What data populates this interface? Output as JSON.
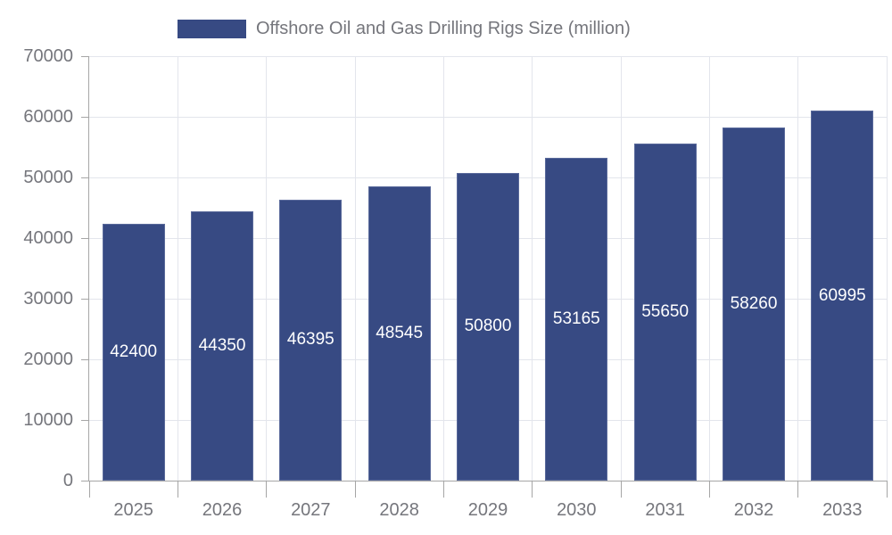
{
  "chart_data": {
    "type": "bar",
    "title": "",
    "legend_position": "top",
    "categories": [
      "2025",
      "2026",
      "2027",
      "2028",
      "2029",
      "2030",
      "2031",
      "2032",
      "2033"
    ],
    "series": [
      {
        "name": "Offshore Oil and Gas Drilling Rigs Size (million)",
        "values": [
          42400,
          44350,
          46395,
          48545,
          50800,
          53165,
          55650,
          58260,
          60995
        ]
      }
    ],
    "xlabel": "",
    "ylabel": "",
    "ylim": [
      0,
      70000
    ],
    "yticks": [
      0,
      10000,
      20000,
      30000,
      40000,
      50000,
      60000,
      70000
    ],
    "grid": true,
    "bar_labels_inside": true,
    "colors": {
      "bar_fill": "#374A83",
      "bar_edge": "#A3ABCB",
      "bar_label_text": "#FFFFFF",
      "axis_text": "#75767C",
      "legend_text": "#75767C",
      "grid_line": "#E3E5EC",
      "axis_line": "#A6A6A6"
    }
  }
}
